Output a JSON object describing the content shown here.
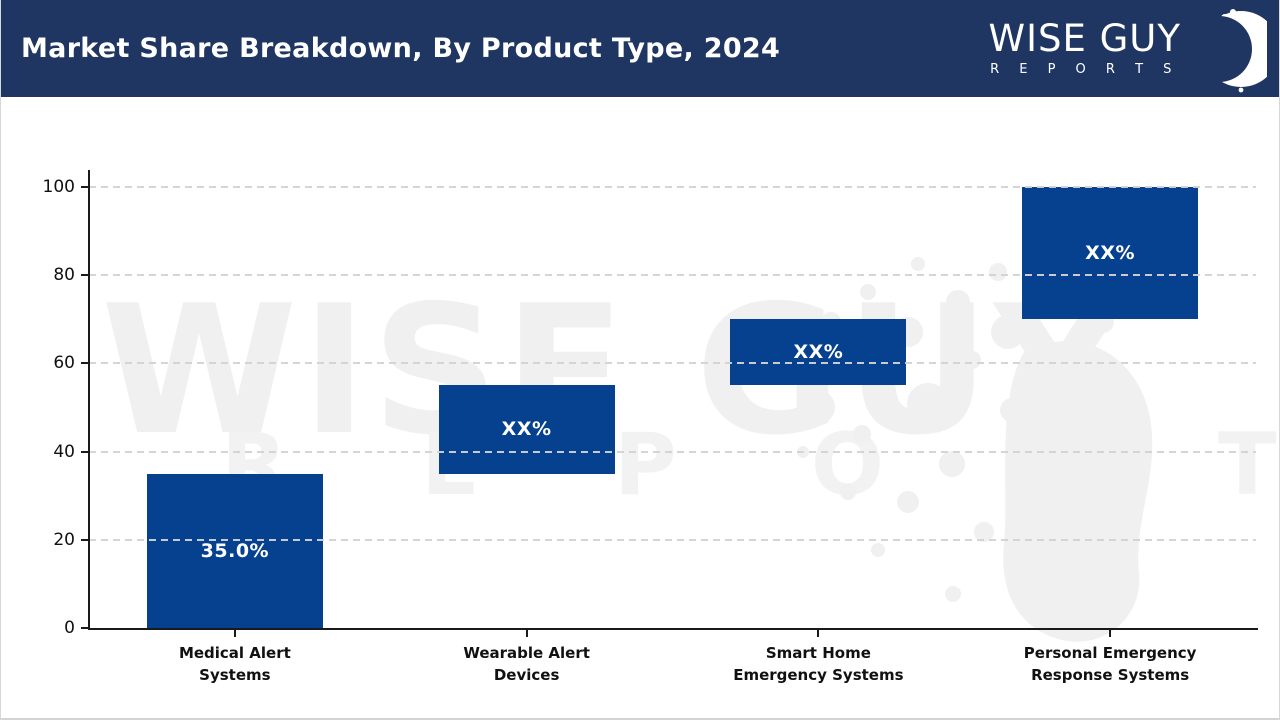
{
  "header": {
    "title": "Market Share Breakdown, By Product Type, 2024",
    "logo_line1": "WISE GUY",
    "logo_line2": "R E P O R T S"
  },
  "watermark": {
    "line1": "WISE GUY",
    "line2": "R E P O R T S"
  },
  "colors": {
    "header_bg": "#1f3562",
    "bar": "#05418f",
    "watermark": "#f0f0f0",
    "axis": "#1a1a1a",
    "gridline": "#d3d3d3"
  },
  "chart_data": {
    "type": "bar",
    "subtype": "floating-segment-waterfall",
    "title": "Market Share Breakdown, By Product Type, 2024",
    "categories": [
      "Medical Alert\nSystems",
      "Wearable Alert\nDevices",
      "Smart Home\nEmergency Systems",
      "Personal Emergency\nResponse Systems"
    ],
    "segments": [
      {
        "category": "Medical Alert Systems",
        "start": 0,
        "end": 35,
        "value": 35,
        "label": "35.0%"
      },
      {
        "category": "Wearable Alert Devices",
        "start": 35,
        "end": 55,
        "value": 20,
        "label": "XX%"
      },
      {
        "category": "Smart Home Emergency Systems",
        "start": 55,
        "end": 70,
        "value": 15,
        "label": "XX%"
      },
      {
        "category": "Personal Emergency Response Systems",
        "start": 70,
        "end": 100,
        "value": 30,
        "label": "XX%"
      }
    ],
    "yticks": [
      0,
      20,
      40,
      60,
      80,
      100
    ],
    "ylim": [
      0,
      100
    ],
    "xlabel": "",
    "ylabel": "",
    "grid": "horizontal-dashed",
    "legend_position": "none",
    "bar_color": "#05418f"
  }
}
